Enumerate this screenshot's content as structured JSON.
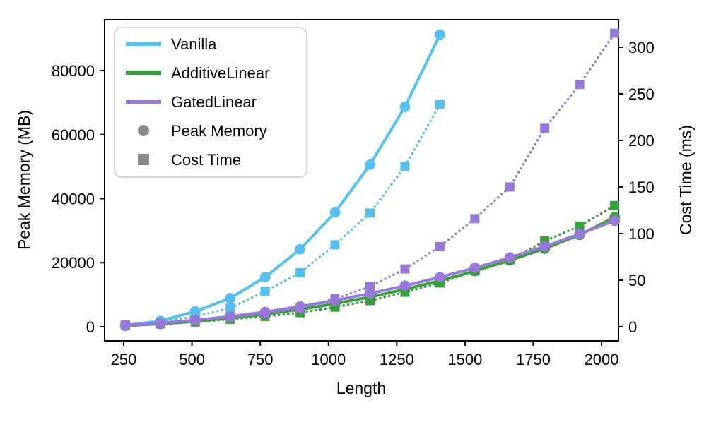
{
  "figure": {
    "background": "#ffffff"
  },
  "chart_data": {
    "type": "line",
    "title": "",
    "xlabel": "Length",
    "ylabel_left": "Peak Memory (MB)",
    "ylabel_right": "Cost Time (ms)",
    "grid": false,
    "x_ticks": [
      250,
      500,
      750,
      1000,
      1250,
      1500,
      1750,
      2000
    ],
    "y_left_ticks": [
      0,
      20000,
      40000,
      60000,
      80000
    ],
    "y_right_ticks": [
      0,
      50,
      100,
      150,
      200,
      250,
      300
    ],
    "x_domain": [
      180,
      2062
    ],
    "y_left_domain": [
      -4410,
      95870
    ],
    "y_right_domain": [
      -15.2,
      329.5
    ],
    "colors": {
      "vanilla": "#56c1f0",
      "additive_linear": "#35a03a",
      "gated_linear": "#9878d8",
      "legend_marker": "#8a8a8a",
      "spine": "#000000"
    },
    "series": [
      {
        "name": "vanilla-peak-memory",
        "label": "Vanilla",
        "metric": "Peak Memory",
        "axis": "left",
        "style": "solid",
        "marker": "circle",
        "color": "#56c1f0",
        "x": [
          256,
          384,
          512,
          640,
          768,
          896,
          1024,
          1152,
          1280,
          1408
        ],
        "y": [
          500,
          1800,
          4800,
          8900,
          15500,
          24200,
          35700,
          50600,
          68700,
          91200
        ]
      },
      {
        "name": "vanilla-cost-time",
        "label": "Vanilla",
        "metric": "Cost Time",
        "axis": "right",
        "style": "dotted",
        "marker": "square",
        "color": "#56c1f0",
        "x": [
          256,
          384,
          512,
          640,
          768,
          896,
          1024,
          1152,
          1280,
          1408
        ],
        "y": [
          2,
          5,
          11,
          20,
          38,
          58,
          88,
          122,
          172,
          239
        ]
      },
      {
        "name": "additivelinear-peak-memory",
        "label": "AdditiveLinear",
        "metric": "Peak Memory",
        "axis": "left",
        "style": "solid",
        "marker": "circle",
        "color": "#35a03a",
        "x": [
          256,
          384,
          512,
          640,
          768,
          896,
          1024,
          1152,
          1280,
          1408,
          1536,
          1664,
          1792,
          1920,
          2048
        ],
        "y": [
          300,
          900,
          1700,
          2700,
          3900,
          5400,
          7200,
          9300,
          11700,
          14400,
          17400,
          20700,
          24400,
          28700,
          34200
        ]
      },
      {
        "name": "additivelinear-cost-time",
        "label": "AdditiveLinear",
        "metric": "Cost Time",
        "axis": "right",
        "style": "dotted",
        "marker": "square",
        "color": "#35a03a",
        "x": [
          256,
          384,
          512,
          640,
          768,
          896,
          1024,
          1152,
          1280,
          1408,
          1536,
          1664,
          1792,
          1920,
          2048
        ],
        "y": [
          1.5,
          3,
          5,
          8,
          11,
          15,
          21,
          28,
          37,
          47,
          60,
          72,
          92,
          108,
          130
        ]
      },
      {
        "name": "gatedlinear-peak-memory",
        "label": "GatedLinear",
        "metric": "Peak Memory",
        "axis": "left",
        "style": "solid",
        "marker": "circle",
        "color": "#9878d8",
        "x": [
          256,
          384,
          512,
          640,
          768,
          896,
          1024,
          1152,
          1280,
          1408,
          1536,
          1664,
          1792,
          1920,
          2048
        ],
        "y": [
          400,
          1100,
          2100,
          3200,
          4600,
          6300,
          8200,
          10400,
          12800,
          15500,
          18400,
          21600,
          25100,
          29000,
          33100
        ]
      },
      {
        "name": "gatedlinear-cost-time",
        "label": "GatedLinear",
        "metric": "Cost Time",
        "axis": "right",
        "style": "dotted",
        "marker": "square",
        "color": "#9878d8",
        "x": [
          256,
          384,
          512,
          640,
          768,
          896,
          1024,
          1152,
          1280,
          1408,
          1536,
          1664,
          1792,
          1920,
          2048
        ],
        "y": [
          2,
          4,
          7,
          10,
          14,
          20,
          30,
          43,
          62,
          86,
          116,
          150,
          213,
          260,
          315
        ]
      }
    ],
    "legend": {
      "position": "upper left",
      "entries": [
        {
          "label": "Vanilla",
          "type": "line",
          "color": "#56c1f0"
        },
        {
          "label": "AdditiveLinear",
          "type": "line",
          "color": "#35a03a"
        },
        {
          "label": "GatedLinear",
          "type": "line",
          "color": "#9878d8"
        },
        {
          "label": "Peak Memory",
          "type": "circle",
          "color": "#8a8a8a"
        },
        {
          "label": "Cost Time",
          "type": "square",
          "color": "#8a8a8a"
        }
      ]
    }
  }
}
